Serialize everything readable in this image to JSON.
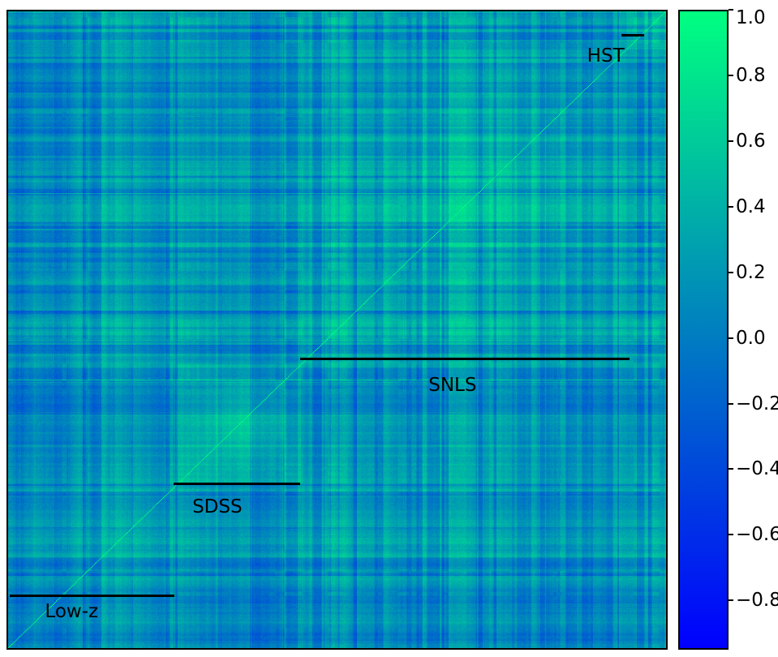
{
  "figure": {
    "background_color": "#ffffff",
    "title": ""
  },
  "chart_data": {
    "type": "heatmap",
    "title": "",
    "description": "Correlation-matrix heatmap of supernovae ordered by survey along the diagonal (Low-z, SDSS, SNLS, HST). Background correlations are weak (teal, ~0 to 0.2) with bright green strongly-correlated blocks inside the SDSS block and upper SNLS block, and blue negatively-correlated stripes crossing the matrix.",
    "colormap": {
      "name": "winter",
      "min_color": "#0000ff",
      "max_color": "#00ff80"
    },
    "value_range": [
      -0.95,
      1.0
    ],
    "colorbar": {
      "position": "right",
      "tick_labels": [
        "1.0",
        "0.8",
        "0.6",
        "0.4",
        "0.2",
        "0.0",
        "−0.2",
        "−0.4",
        "−0.6",
        "−0.8"
      ],
      "tick_values": [
        1.0,
        0.8,
        0.6,
        0.4,
        0.2,
        0.0,
        -0.2,
        -0.4,
        -0.6,
        -0.8
      ]
    },
    "axes": {
      "x_ticks": [],
      "y_ticks": [],
      "grid": false
    },
    "matrix": {
      "n": 768,
      "seed": 42,
      "base": 0.12,
      "diagonal_value": 1.0,
      "surveys": [
        {
          "name": "Low-z",
          "start_frac": 0.0,
          "end_frac": 0.255,
          "diag_boost": 0.02
        },
        {
          "name": "SDSS",
          "start_frac": 0.255,
          "end_frac": 0.445,
          "diag_boost": 0.1,
          "bump": 0.38,
          "bump_center": 0.5
        },
        {
          "name": "SNLS",
          "start_frac": 0.445,
          "end_frac": 0.94,
          "diag_boost": 0.05,
          "bump": 0.2,
          "bump_center": 0.6
        },
        {
          "name": "HST",
          "start_frac": 0.94,
          "end_frac": 1.0,
          "diag_boost": 0.15
        }
      ]
    },
    "annotations": [
      {
        "label": "Low-z",
        "line": {
          "x0": 0.002,
          "x1": 0.253,
          "y": 0.917
        },
        "text": {
          "x": 0.056,
          "y": 0.927
        }
      },
      {
        "label": "SDSS",
        "line": {
          "x0": 0.252,
          "x1": 0.444,
          "y": 0.741
        },
        "text": {
          "x": 0.28,
          "y": 0.763
        }
      },
      {
        "label": "SNLS",
        "line": {
          "x0": 0.444,
          "x1": 0.944,
          "y": 0.545
        },
        "text": {
          "x": 0.639,
          "y": 0.572
        }
      },
      {
        "label": "HST",
        "line": {
          "x0": 0.932,
          "x1": 0.967,
          "y": 0.037
        },
        "text": {
          "x": 0.88,
          "y": 0.055
        }
      }
    ]
  }
}
